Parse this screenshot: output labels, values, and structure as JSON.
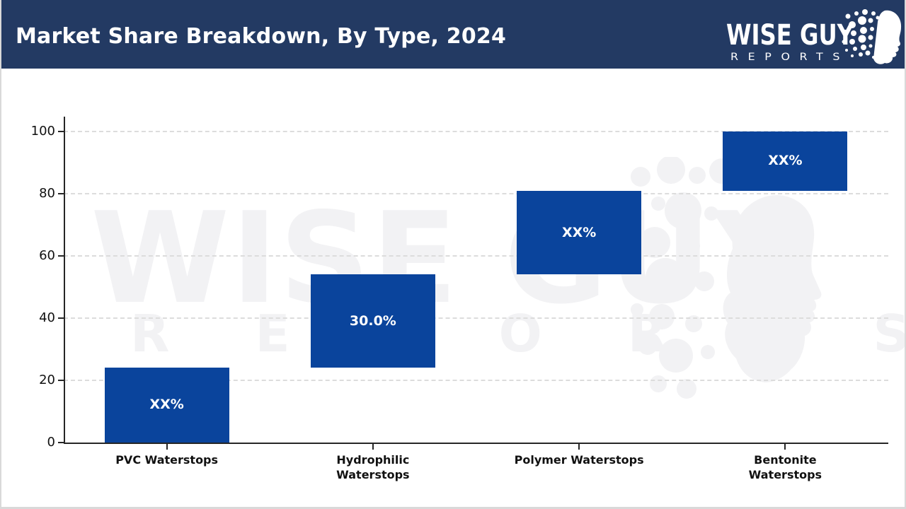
{
  "header": {
    "title": "Market Share Breakdown, By Type, 2024",
    "background_color": "#233a63",
    "logo": {
      "line1": "WISE GUY",
      "line2": "REPORTS"
    }
  },
  "watermark": {
    "line1": "WISE GUY",
    "line2": "R E P O R T S"
  },
  "chart_data": {
    "type": "bar",
    "variant": "floating_segment_waterfall",
    "title": "Market Share Breakdown, By Type, 2024",
    "categories": [
      "PVC Waterstops",
      "Hydrophilic Waterstops",
      "Polymer Waterstops",
      "Bentonite Waterstops"
    ],
    "category_lines": [
      [
        "PVC Waterstops"
      ],
      [
        "Hydrophilic",
        "Waterstops"
      ],
      [
        "Polymer Waterstops"
      ],
      [
        "Bentonite",
        "Waterstops"
      ]
    ],
    "series": [
      {
        "name": "Market Share (%)",
        "segments": [
          {
            "category": "PVC Waterstops",
            "start": 0,
            "end": 24,
            "value_label": "XX%"
          },
          {
            "category": "Hydrophilic Waterstops",
            "start": 24,
            "end": 54,
            "value_label": "30.0%"
          },
          {
            "category": "Polymer Waterstops",
            "start": 54,
            "end": 81,
            "value_label": "XX%"
          },
          {
            "category": "Bentonite Waterstops",
            "start": 81,
            "end": 100,
            "value_label": "XX%"
          }
        ]
      }
    ],
    "xlabel": "",
    "ylabel": "",
    "ylim": [
      0,
      100
    ],
    "yticks": [
      "0",
      "20",
      "40",
      "60",
      "80",
      "100"
    ],
    "grid": "horizontal_dashed",
    "legend": "none",
    "bar_color": "#0a449c",
    "bar_label_color": "#ffffff",
    "axis_color": "#262626",
    "gridline_color": "#dcdcdc"
  }
}
